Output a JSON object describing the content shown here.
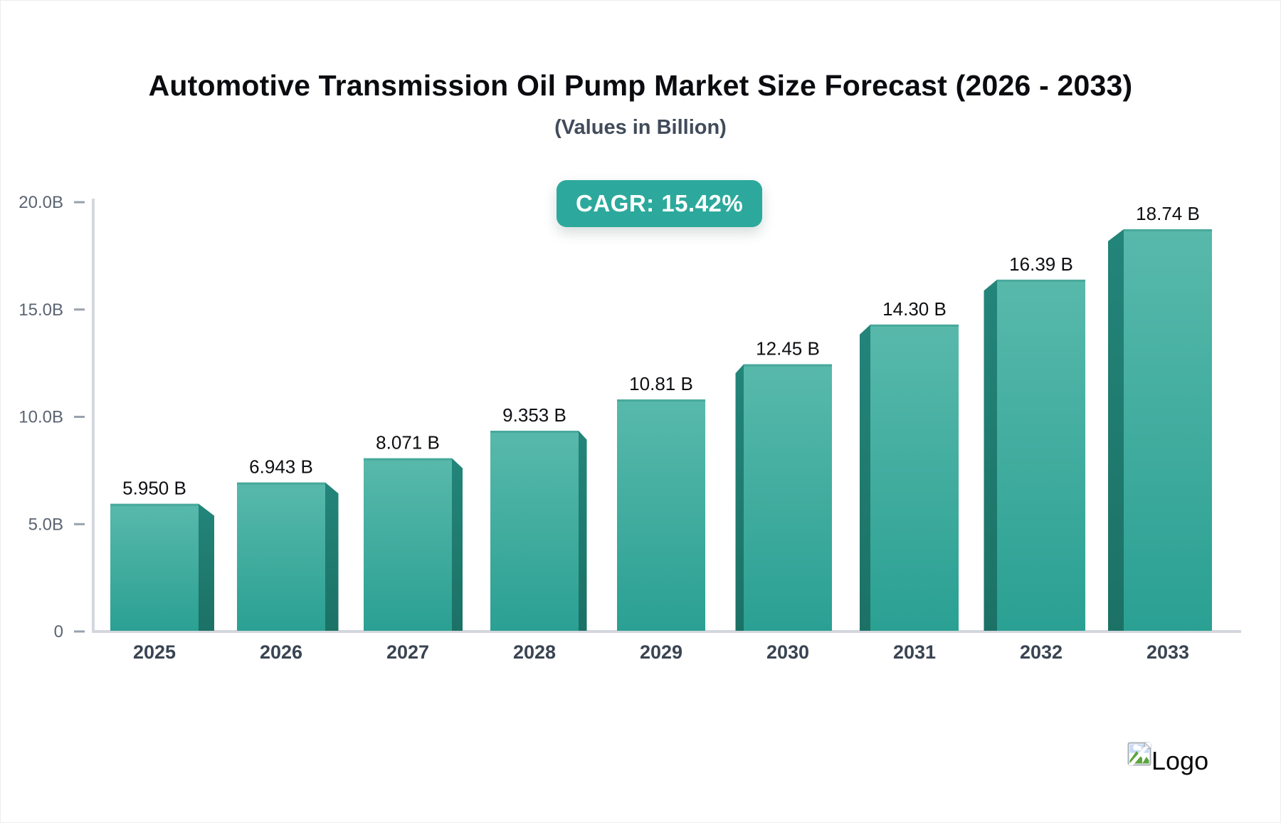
{
  "header": {
    "title": "Automotive Transmission Oil Pump Market Size Forecast (2026 - 2033)",
    "subtitle": "(Values in Billion)",
    "cagr_label": "CAGR: 15.42%"
  },
  "footer": {
    "logo_alt": "Logo"
  },
  "colors": {
    "bar_face_top": "#58b9ab",
    "bar_face_bottom": "#2aa093",
    "bar_top_edge": "#3f9f92",
    "bar_side_top": "#23857a",
    "bar_side_bottom": "#1c7165",
    "badge_bg": "#2ca99c",
    "axis_line": "#d3d7dd",
    "tick_dash": "#99a1ad",
    "tick_label": "#5a6472",
    "year_label": "#3a4452",
    "value_label": "#0d0f12"
  },
  "chart_data": {
    "type": "bar",
    "title": "Automotive Transmission Oil Pump Market Size Forecast (2026 - 2033)",
    "subtitle": "(Values in Billion)",
    "annotation": "CAGR: 15.42%",
    "unit": "Billion",
    "categories": [
      "2025",
      "2026",
      "2027",
      "2028",
      "2029",
      "2030",
      "2031",
      "2032",
      "2033"
    ],
    "values": [
      5.95,
      6.943,
      8.071,
      9.353,
      10.81,
      12.45,
      14.3,
      16.39,
      18.74
    ],
    "value_labels": [
      "5.950 B",
      "6.943 B",
      "8.071 B",
      "9.353 B",
      "10.81 B",
      "12.45 B",
      "14.30 B",
      "16.39 B",
      "18.74 B"
    ],
    "xlabel": "",
    "ylabel": "",
    "ylim": [
      0,
      20
    ],
    "yticks": [
      {
        "value": 20,
        "label": "20.0B"
      },
      {
        "value": 15,
        "label": "15.0B"
      },
      {
        "value": 10,
        "label": "10.0B"
      },
      {
        "value": 5,
        "label": "5.0B"
      },
      {
        "value": 0,
        "label": "0"
      }
    ],
    "grid": false,
    "legend": false,
    "bar_style": "3d-extruded, sides face away from center, value labels above bars"
  }
}
